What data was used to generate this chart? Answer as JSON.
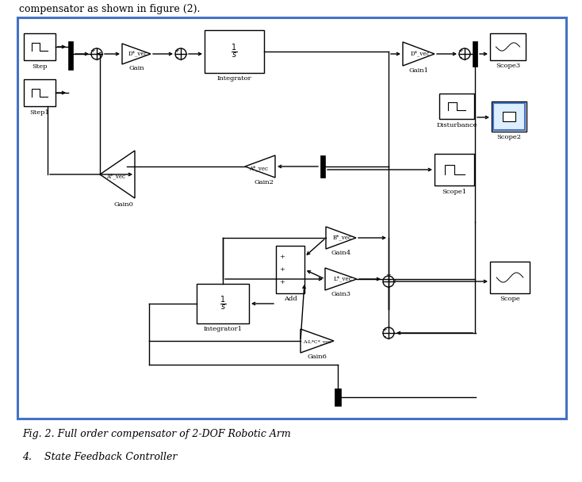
{
  "title": "Fig. 2. Full order compensator of 2-DOF Robotic Arm",
  "border_color": "#4472C4",
  "bg_color": "#FFFFFF",
  "top_text": "compensator as shown in figure (2).",
  "bottom_header": "4.    State Feedback Controller",
  "fig_w": 7.34,
  "fig_h": 6.08,
  "dpi": 100
}
